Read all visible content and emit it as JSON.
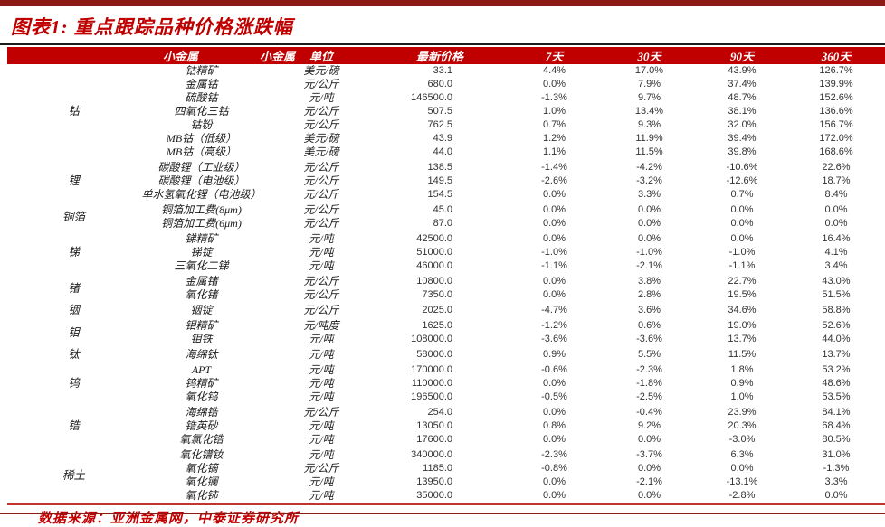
{
  "title": "图表1:  重点跟踪品种价格涨跌幅",
  "colors": {
    "accent_red": "#C00000",
    "dark_red_bar": "#8C1A15",
    "header_text": "#FFFFFF",
    "body_text": "#333333"
  },
  "table": {
    "headers": [
      "小金属",
      "小金属",
      "单位",
      "最新价格",
      "7天",
      "30天",
      "90天",
      "360天"
    ],
    "groups": [
      {
        "name": "钴",
        "rows": [
          {
            "name": "钴精矿",
            "unit": "美元/磅",
            "price": "33.1",
            "d7": "4.4%",
            "d30": "17.0%",
            "d90": "43.9%",
            "d360": "126.7%"
          },
          {
            "name": "金属钴",
            "unit": "元/公斤",
            "price": "680.0",
            "d7": "0.0%",
            "d30": "7.9%",
            "d90": "37.4%",
            "d360": "139.9%"
          },
          {
            "name": "硫酸钴",
            "unit": "元/吨",
            "price": "146500.0",
            "d7": "-1.3%",
            "d30": "9.7%",
            "d90": "48.7%",
            "d360": "152.6%"
          },
          {
            "name": "四氧化三钴",
            "unit": "元/公斤",
            "price": "507.5",
            "d7": "1.0%",
            "d30": "13.4%",
            "d90": "38.1%",
            "d360": "136.6%"
          },
          {
            "name": "钴粉",
            "unit": "元/公斤",
            "price": "762.5",
            "d7": "0.7%",
            "d30": "9.3%",
            "d90": "32.0%",
            "d360": "156.7%"
          },
          {
            "name": "MB钴（低级）",
            "unit": "美元/磅",
            "price": "43.9",
            "d7": "1.2%",
            "d30": "11.9%",
            "d90": "39.4%",
            "d360": "172.0%"
          },
          {
            "name": "MB钴（高级）",
            "unit": "美元/磅",
            "price": "44.0",
            "d7": "1.1%",
            "d30": "11.5%",
            "d90": "39.8%",
            "d360": "168.6%"
          }
        ]
      },
      {
        "name": "锂",
        "rows": [
          {
            "name": "碳酸锂（工业级）",
            "unit": "元/公斤",
            "price": "138.5",
            "d7": "-1.4%",
            "d30": "-4.2%",
            "d90": "-10.6%",
            "d360": "22.6%"
          },
          {
            "name": "碳酸锂（电池级）",
            "unit": "元/公斤",
            "price": "149.5",
            "d7": "-2.6%",
            "d30": "-3.2%",
            "d90": "-12.6%",
            "d360": "18.7%"
          },
          {
            "name": "单水氢氧化锂（电池级）",
            "unit": "元/公斤",
            "price": "154.5",
            "d7": "0.0%",
            "d30": "3.3%",
            "d90": "0.7%",
            "d360": "8.4%"
          }
        ]
      },
      {
        "name": "铜箔",
        "rows": [
          {
            "name": "铜箔加工费(8μm)",
            "unit": "元/公斤",
            "price": "45.0",
            "d7": "0.0%",
            "d30": "0.0%",
            "d90": "0.0%",
            "d360": "0.0%"
          },
          {
            "name": "铜箔加工费(6μm)",
            "unit": "元/公斤",
            "price": "87.0",
            "d7": "0.0%",
            "d30": "0.0%",
            "d90": "0.0%",
            "d360": "0.0%"
          }
        ]
      },
      {
        "name": "锑",
        "rows": [
          {
            "name": "锑精矿",
            "unit": "元/吨",
            "price": "42500.0",
            "d7": "0.0%",
            "d30": "0.0%",
            "d90": "0.0%",
            "d360": "16.4%"
          },
          {
            "name": "锑锭",
            "unit": "元/吨",
            "price": "51000.0",
            "d7": "-1.0%",
            "d30": "-1.0%",
            "d90": "-1.0%",
            "d360": "4.1%"
          },
          {
            "name": "三氧化二锑",
            "unit": "元/吨",
            "price": "46000.0",
            "d7": "-1.1%",
            "d30": "-2.1%",
            "d90": "-1.1%",
            "d360": "3.4%"
          }
        ]
      },
      {
        "name": "锗",
        "rows": [
          {
            "name": "金属锗",
            "unit": "元/公斤",
            "price": "10800.0",
            "d7": "0.0%",
            "d30": "3.8%",
            "d90": "22.7%",
            "d360": "43.0%"
          },
          {
            "name": "氧化锗",
            "unit": "元/公斤",
            "price": "7350.0",
            "d7": "0.0%",
            "d30": "2.8%",
            "d90": "19.5%",
            "d360": "51.5%"
          }
        ]
      },
      {
        "name": "铟",
        "rows": [
          {
            "name": "铟锭",
            "unit": "元/公斤",
            "price": "2025.0",
            "d7": "-4.7%",
            "d30": "3.6%",
            "d90": "34.6%",
            "d360": "58.8%"
          }
        ]
      },
      {
        "name": "钼",
        "rows": [
          {
            "name": "钼精矿",
            "unit": "元/吨度",
            "price": "1625.0",
            "d7": "-1.2%",
            "d30": "0.6%",
            "d90": "19.0%",
            "d360": "52.6%"
          },
          {
            "name": "钼铁",
            "unit": "元/吨",
            "price": "108000.0",
            "d7": "-3.6%",
            "d30": "-3.6%",
            "d90": "13.7%",
            "d360": "44.0%"
          }
        ]
      },
      {
        "name": "钛",
        "rows": [
          {
            "name": "海绵钛",
            "unit": "元/吨",
            "price": "58000.0",
            "d7": "0.9%",
            "d30": "5.5%",
            "d90": "11.5%",
            "d360": "13.7%"
          }
        ]
      },
      {
        "name": "钨",
        "rows": [
          {
            "name": "APT",
            "unit": "元/吨",
            "price": "170000.0",
            "d7": "-0.6%",
            "d30": "-2.3%",
            "d90": "1.8%",
            "d360": "53.2%"
          },
          {
            "name": "钨精矿",
            "unit": "元/吨",
            "price": "110000.0",
            "d7": "0.0%",
            "d30": "-1.8%",
            "d90": "0.9%",
            "d360": "48.6%"
          },
          {
            "name": "氧化钨",
            "unit": "元/吨",
            "price": "196500.0",
            "d7": "-0.5%",
            "d30": "-2.5%",
            "d90": "1.0%",
            "d360": "53.5%"
          }
        ]
      },
      {
        "name": "锆",
        "rows": [
          {
            "name": "海绵锆",
            "unit": "元/公斤",
            "price": "254.0",
            "d7": "0.0%",
            "d30": "-0.4%",
            "d90": "23.9%",
            "d360": "84.1%"
          },
          {
            "name": "锆英砂",
            "unit": "元/吨",
            "price": "13050.0",
            "d7": "0.8%",
            "d30": "9.2%",
            "d90": "20.3%",
            "d360": "68.4%"
          },
          {
            "name": "氧氯化锆",
            "unit": "元/吨",
            "price": "17600.0",
            "d7": "0.0%",
            "d30": "0.0%",
            "d90": "-3.0%",
            "d360": "80.5%"
          }
        ]
      },
      {
        "name": "稀土",
        "rows": [
          {
            "name": "氧化镨钕",
            "unit": "元/吨",
            "price": "340000.0",
            "d7": "-2.3%",
            "d30": "-3.7%",
            "d90": "6.3%",
            "d360": "31.0%"
          },
          {
            "name": "氧化镝",
            "unit": "元/公斤",
            "price": "1185.0",
            "d7": "-0.8%",
            "d30": "0.0%",
            "d90": "0.0%",
            "d360": "-1.3%"
          },
          {
            "name": "氧化镧",
            "unit": "元/吨",
            "price": "13950.0",
            "d7": "0.0%",
            "d30": "-2.1%",
            "d90": "-13.1%",
            "d360": "3.3%"
          },
          {
            "name": "氧化铈",
            "unit": "元/吨",
            "price": "35000.0",
            "d7": "0.0%",
            "d30": "0.0%",
            "d90": "-2.8%",
            "d360": "0.0%"
          }
        ]
      }
    ]
  },
  "footer": {
    "source": "数据来源：亚洲金属网，中泰证券研究所"
  }
}
